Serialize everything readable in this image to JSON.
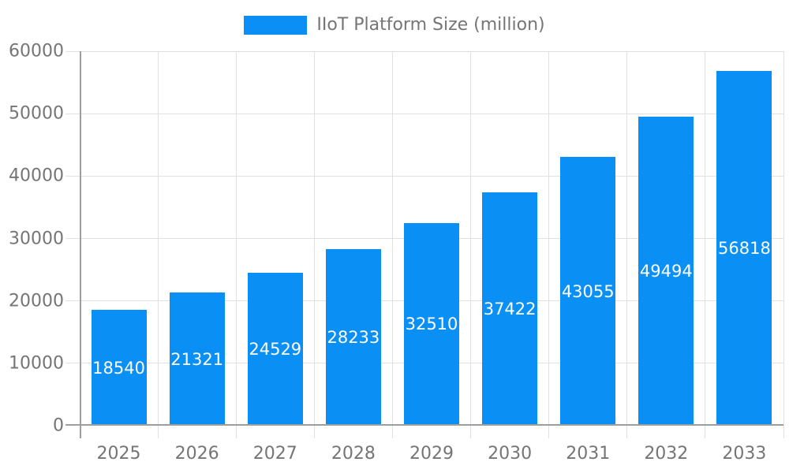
{
  "legend": {
    "label": "IIoT Platform Size (million)"
  },
  "chart_data": {
    "type": "bar",
    "title": "IIoT Platform Size (million)",
    "series_name": "IIoT Platform Size (million)",
    "categories": [
      "2025",
      "2026",
      "2027",
      "2028",
      "2029",
      "2030",
      "2031",
      "2032",
      "2033"
    ],
    "values": [
      18540,
      21321,
      24529,
      28233,
      32510,
      37422,
      43055,
      49494,
      56818
    ],
    "xlabel": "",
    "ylabel": "",
    "ylim": [
      0,
      60000
    ],
    "yticks": [
      0,
      10000,
      20000,
      30000,
      40000,
      50000,
      60000
    ],
    "grid": true,
    "legend_position": "top",
    "bar_color": "#0a8ff5",
    "bar_label_color": "#ffffff",
    "axis_text_color": "#757575",
    "gridline_color": "#e0e0e0",
    "axis_line_color": "#9e9e9e"
  }
}
